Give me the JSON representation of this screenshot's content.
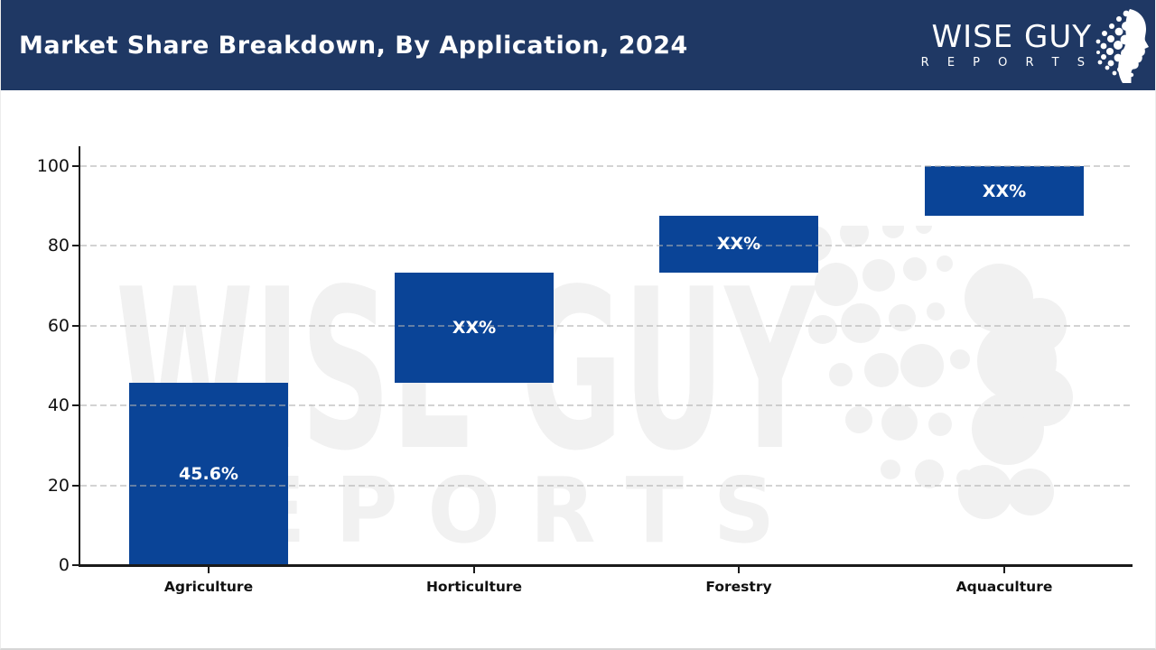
{
  "header": {
    "title": "Market Share Breakdown, By Application, 2024",
    "bg_color": "#1f3864",
    "logo": {
      "line1": "WISE GUY",
      "line2": "R E P O R T S"
    }
  },
  "watermark": {
    "line1": "WISE GUY",
    "line2": "R E P O R T S"
  },
  "chart_data": {
    "type": "bar",
    "subtype": "waterfall_breakdown",
    "title": "Market Share Breakdown, By Application, 2024",
    "categories": [
      "Agriculture",
      "Horticulture",
      "Forestry",
      "Aquaculture"
    ],
    "segments": [
      {
        "category": "Agriculture",
        "start": 0,
        "end": 45.6,
        "label": "45.6%"
      },
      {
        "category": "Horticulture",
        "start": 45.6,
        "end": 73.4,
        "label": "XX%"
      },
      {
        "category": "Forestry",
        "start": 73.4,
        "end": 87.5,
        "label": "XX%"
      },
      {
        "category": "Aquaculture",
        "start": 87.5,
        "end": 100,
        "label": "XX%"
      }
    ],
    "bar_labels": [
      "45.6%",
      "XX%",
      "XX%",
      "XX%"
    ],
    "yticks": [
      0,
      20,
      40,
      60,
      80,
      100
    ],
    "ylim": [
      0,
      104.5
    ],
    "xlabel": "",
    "ylabel": "",
    "grid": "horizontal_dashed",
    "legend": "none",
    "bar_color": "#0a4497",
    "axis_color": "#1a1a1a",
    "label_color": "#ffffff"
  }
}
